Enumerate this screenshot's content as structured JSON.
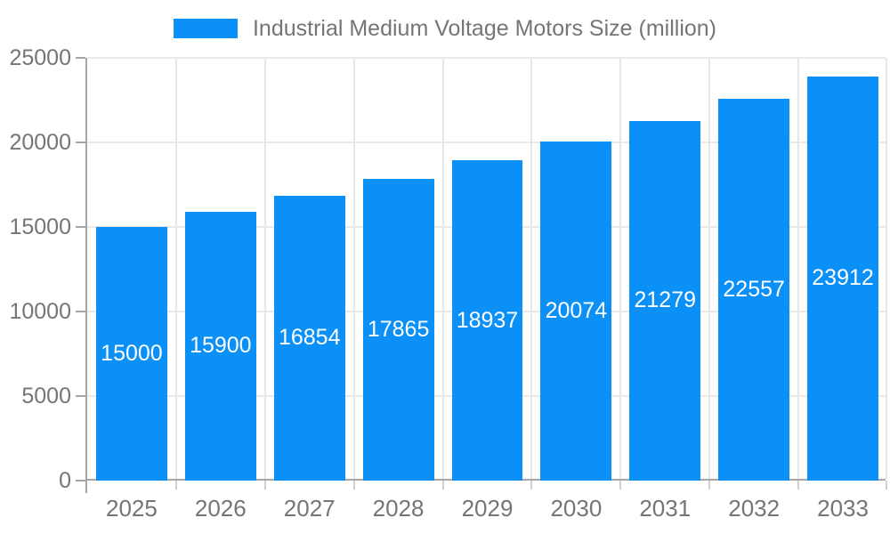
{
  "chart_data": {
    "type": "bar",
    "title": "Industrial Medium Voltage Motors Size (million)",
    "categories": [
      "2025",
      "2026",
      "2027",
      "2028",
      "2029",
      "2030",
      "2031",
      "2032",
      "2033"
    ],
    "values": [
      15000,
      15900,
      16854,
      17865,
      18937,
      20074,
      21279,
      22557,
      23912
    ],
    "xlabel": "",
    "ylabel": "",
    "ylim": [
      0,
      25000
    ],
    "yticks": [
      0,
      5000,
      10000,
      15000,
      20000,
      25000
    ],
    "grid": "on",
    "legend_position": "top-center",
    "bar_labels_inside": true,
    "colors": {
      "bar": "#0a90f6",
      "bar_label_text": "#ffffff",
      "axis_text": "#757575",
      "grid_line": "#e9e9e9",
      "axis_line": "#a6a6a6",
      "background": "#ffffff"
    }
  }
}
